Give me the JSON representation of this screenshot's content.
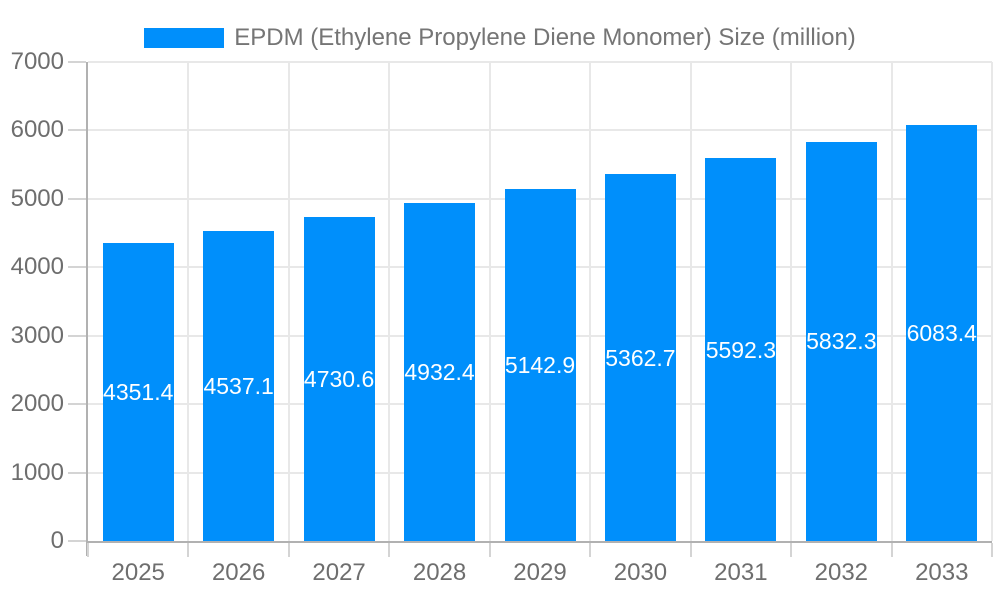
{
  "chart_data": {
    "type": "bar",
    "title": "",
    "xlabel": "",
    "ylabel": "",
    "categories": [
      "2025",
      "2026",
      "2027",
      "2028",
      "2029",
      "2030",
      "2031",
      "2032",
      "2033"
    ],
    "series": [
      {
        "name": "EPDM (Ethylene Propylene Diene Monomer) Size (million)",
        "values": [
          4351.4,
          4537.1,
          4730.6,
          4932.4,
          5142.9,
          5362.7,
          5592.3,
          5832.3,
          6083.4
        ],
        "color": "#008FFB"
      }
    ],
    "data_labels": {
      "visible": true,
      "position": "center-of-bar",
      "color": "#ffffff",
      "decimals": 1
    },
    "ylim": [
      0,
      7000
    ],
    "y_ticks": [
      0,
      1000,
      2000,
      3000,
      4000,
      5000,
      6000,
      7000
    ],
    "grid": {
      "horizontal": true,
      "vertical": true,
      "color": "#e8e8e8"
    },
    "axis": {
      "line_color": "#b1b1b1",
      "tick_color": "#d4d4d4",
      "label_color": "#6e6e6e"
    },
    "legend_position": "top",
    "legend_text_color": "#757575",
    "background_color": "#ffffff"
  }
}
